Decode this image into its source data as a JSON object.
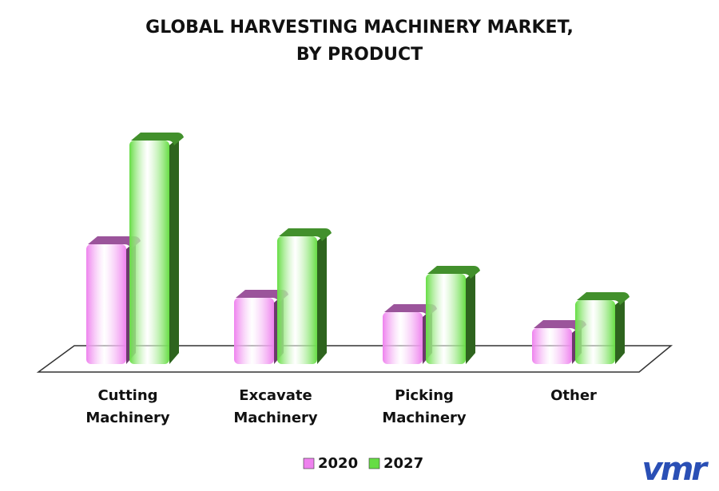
{
  "chart_data": {
    "type": "bar3d",
    "title": "GLOBAL HARVESTING MACHINERY MARKET,\nBY PRODUCT",
    "categories": [
      "Cutting\nMachinery",
      "Excavate\nMachinery",
      "Picking\nMachinery",
      "Other"
    ],
    "series": [
      {
        "name": "2020",
        "color": "#ee82ee",
        "values": [
          150,
          83,
          65,
          45
        ]
      },
      {
        "name": "2027",
        "color": "#66dd44",
        "values": [
          280,
          160,
          113,
          80
        ]
      }
    ],
    "logo": "vmr"
  }
}
